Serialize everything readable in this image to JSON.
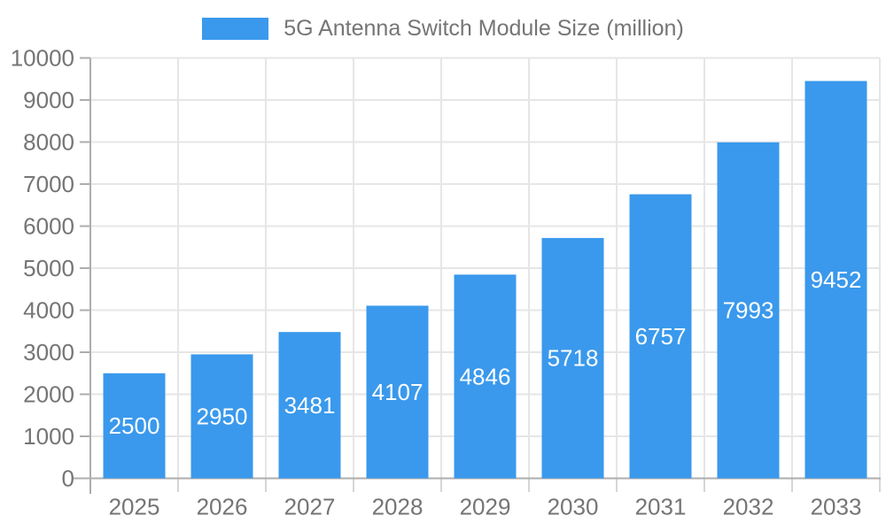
{
  "legend": {
    "label": "5G Antenna Switch Module Size (million)",
    "position": "top"
  },
  "chart_data": {
    "type": "bar",
    "title": "5G Antenna Switch Module Size (million)",
    "categories": [
      "2025",
      "2026",
      "2027",
      "2028",
      "2029",
      "2030",
      "2031",
      "2032",
      "2033"
    ],
    "values": [
      2500,
      2950,
      3481,
      4107,
      4846,
      5718,
      6757,
      7993,
      9452
    ],
    "xlabel": "",
    "ylabel": "",
    "ylim": [
      0,
      10000
    ],
    "ytick_step": 1000,
    "yticks": [
      0,
      1000,
      2000,
      3000,
      4000,
      5000,
      6000,
      7000,
      8000,
      9000,
      10000
    ],
    "grid": "on",
    "legend_position": "top",
    "bar_labels_shown": true
  },
  "colors": {
    "bar": "#3A99EC",
    "grid": "#E6E6E6",
    "axis": "#ADADAD",
    "x_tick": "#D6D6D6",
    "tick_text": "#757575",
    "bar_label_text": "#FFFFFF",
    "background": "#FFFFFF"
  }
}
